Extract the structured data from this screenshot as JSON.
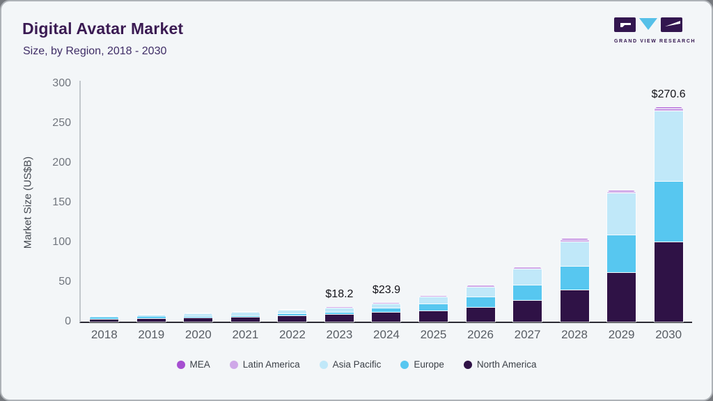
{
  "header": {
    "title": "Digital Avatar Market",
    "subtitle": "Size, by Region, 2018 - 2030",
    "logo_text": "GRAND VIEW RESEARCH"
  },
  "chart_data": {
    "type": "bar",
    "stacked": true,
    "title": "Digital Avatar Market Size, by Region, 2018 - 2030",
    "xlabel": "",
    "ylabel": "Market Size (US$B)",
    "ylim": [
      0,
      300
    ],
    "yticks": [
      0,
      50,
      100,
      150,
      200,
      250,
      300
    ],
    "grid": false,
    "legend_position": "bottom",
    "categories": [
      "2018",
      "2019",
      "2020",
      "2021",
      "2022",
      "2023",
      "2024",
      "2025",
      "2026",
      "2027",
      "2028",
      "2029",
      "2030"
    ],
    "series": [
      {
        "name": "MEA",
        "color": "#a64fd1",
        "values": [
          0.05,
          0.1,
          0.1,
          0.1,
          0.15,
          0.1,
          0.25,
          0.3,
          0.4,
          0.6,
          0.9,
          0.6,
          1.1
        ]
      },
      {
        "name": "Latin America",
        "color": "#cfa8e8",
        "values": [
          0.15,
          0.2,
          0.3,
          0.3,
          0.4,
          0.4,
          0.55,
          0.8,
          1.1,
          1.8,
          2.7,
          2.4,
          3.5
        ]
      },
      {
        "name": "Asia Pacific",
        "color": "#c0e8f9",
        "values": [
          2.0,
          2.5,
          3.2,
          4.0,
          4.3,
          5.0,
          5.4,
          9.0,
          12.7,
          19.7,
          31.0,
          52.5,
          88.5
        ]
      },
      {
        "name": "Europe",
        "color": "#57c7f0",
        "values": [
          1.5,
          1.8,
          2.1,
          2.1,
          2.5,
          3.4,
          5.1,
          8.6,
          13.0,
          19.4,
          30.0,
          47.0,
          77.0
        ]
      },
      {
        "name": "North America",
        "color": "#2f1246",
        "values": [
          3.8,
          4.4,
          5.0,
          6.2,
          7.8,
          9.3,
          12.6,
          14.2,
          18.5,
          27.2,
          40.0,
          62.5,
          100.5
        ]
      }
    ],
    "totals": [
      7.5,
      9.0,
      10.7,
      12.7,
      15.2,
      18.2,
      23.9,
      32.9,
      45.7,
      68.7,
      104.6,
      165.0,
      270.6
    ],
    "annotations": [
      {
        "category": "2023",
        "label": "$18.2"
      },
      {
        "category": "2024",
        "label": "$23.9"
      },
      {
        "category": "2030",
        "label": "$270.6"
      }
    ]
  },
  "colors": {
    "card_background": "#f3f6f8",
    "title": "#3a1a52",
    "axis_line": "#2b2b33",
    "logo_purple": "#33164f",
    "logo_blue": "#56c0e8"
  }
}
